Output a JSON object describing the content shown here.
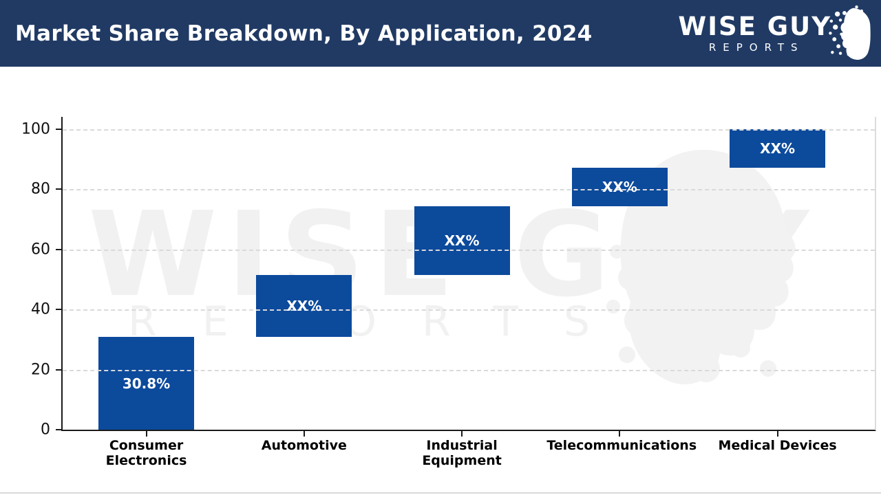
{
  "header": {
    "bg_color": "#203a64",
    "title": "Market Share Breakdown, By Application, 2024",
    "logo": {
      "wordmark": "WISE GUY",
      "subtext": "REPORTS"
    }
  },
  "watermark": {
    "wordmark": "WISE GUY",
    "subtext": "REPORTS"
  },
  "chart_data": {
    "type": "bar",
    "subtype": "waterfall-floating-segments",
    "title": "Market Share Breakdown, By Application, 2024",
    "categories": [
      "Consumer Electronics",
      "Automotive",
      "Industrial Equipment",
      "Telecommunications",
      "Medical Devices"
    ],
    "segments": [
      {
        "category": "Consumer Electronics",
        "start": 0,
        "end": 30.8,
        "value": 30.8,
        "label": "30.8%"
      },
      {
        "category": "Automotive",
        "start": 30.8,
        "end": 51.4,
        "value": 20.6,
        "label": "XX%"
      },
      {
        "category": "Industrial Equipment",
        "start": 51.4,
        "end": 74.4,
        "value": 23.0,
        "label": "XX%"
      },
      {
        "category": "Telecommunications",
        "start": 74.4,
        "end": 87.2,
        "value": 12.8,
        "label": "XX%"
      },
      {
        "category": "Medical Devices",
        "start": 87.2,
        "end": 100.0,
        "value": 12.8,
        "label": "XX%"
      }
    ],
    "y_axis": {
      "ticks": [
        0,
        20,
        40,
        60,
        80,
        100
      ],
      "tick_labels": [
        "0",
        "20",
        "40",
        "60",
        "80",
        "100"
      ],
      "ylim": [
        0,
        104
      ]
    },
    "x_axis": {
      "label": "",
      "tick_label_style": "bold"
    },
    "grid": {
      "horizontal": true,
      "style": "dashed",
      "color": "#d9d9d9"
    },
    "legend": "none",
    "bar_color": "#0c4a9c",
    "bar_label_color": "#ffffff",
    "axis_color": "#1a1a1a",
    "ylabel": "",
    "xlabel": ""
  }
}
